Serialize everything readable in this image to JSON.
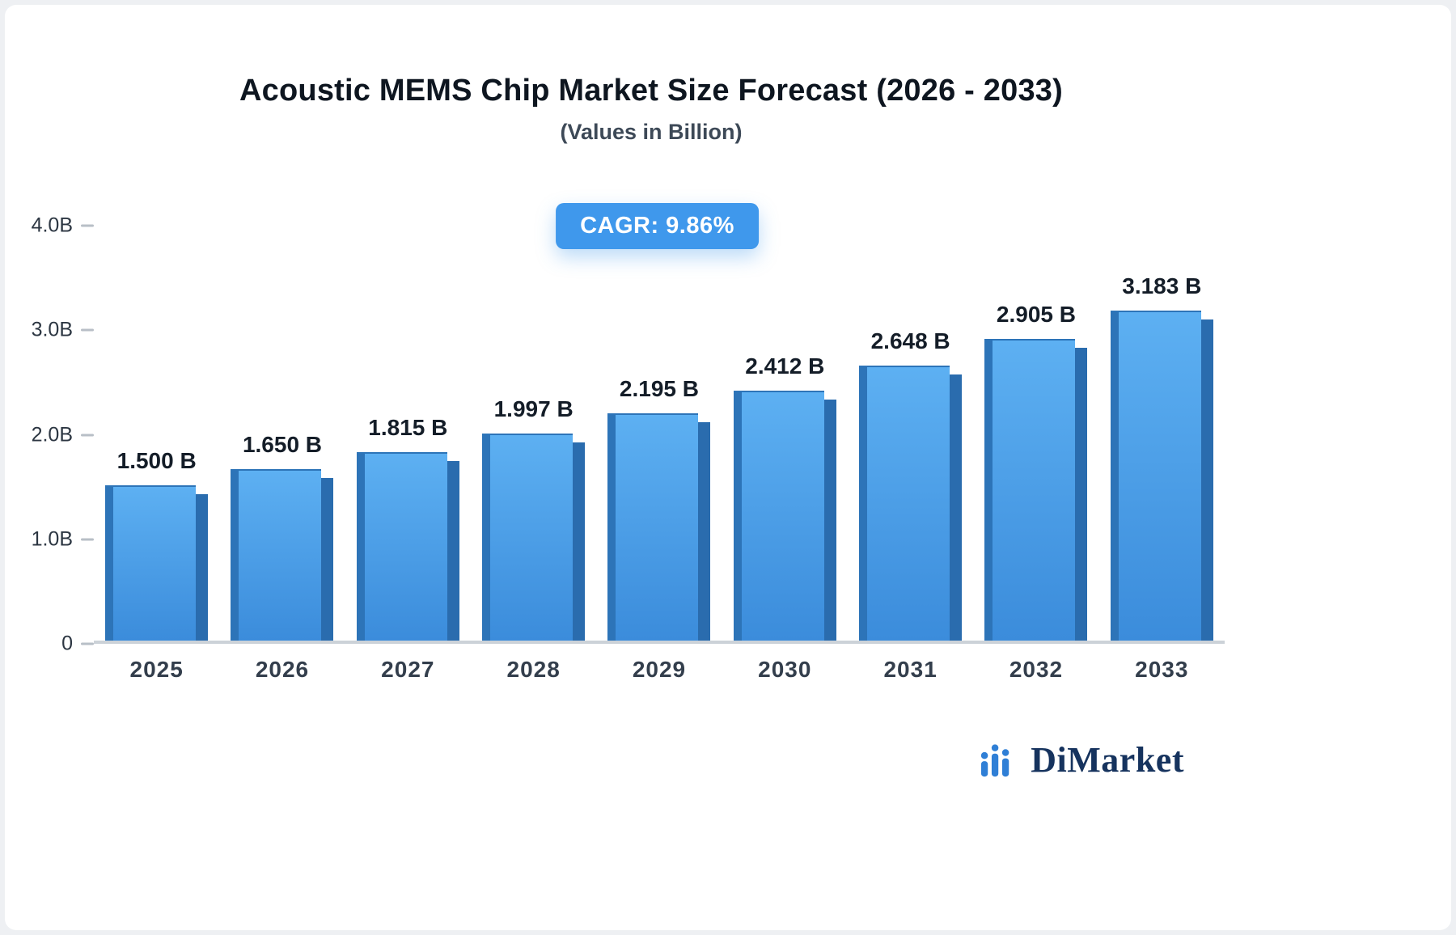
{
  "header": {
    "title": "Acoustic MEMS Chip Market Size Forecast (2026 - 2033)",
    "subtitle": "(Values in Billion)"
  },
  "badge": {
    "label": "CAGR: 9.86%"
  },
  "chart_data": {
    "type": "bar",
    "title": "Acoustic MEMS Chip Market Size Forecast (2026 - 2033)",
    "subtitle": "(Values in Billion)",
    "categories": [
      "2025",
      "2026",
      "2027",
      "2028",
      "2029",
      "2030",
      "2031",
      "2032",
      "2033"
    ],
    "values": [
      1.5,
      1.65,
      1.815,
      1.997,
      2.195,
      2.412,
      2.648,
      2.905,
      3.183
    ],
    "value_labels": [
      "1.500 B",
      "1.650 B",
      "1.815 B",
      "1.997 B",
      "2.195 B",
      "2.412 B",
      "2.648 B",
      "2.905 B",
      "3.183 B"
    ],
    "xlabel": "",
    "ylabel": "",
    "ylim": [
      0,
      4.0
    ],
    "yticks": [
      {
        "value": 0.0,
        "label": "0"
      },
      {
        "value": 1.0,
        "label": "1.0B"
      },
      {
        "value": 2.0,
        "label": "2.0B"
      },
      {
        "value": 3.0,
        "label": "3.0B"
      },
      {
        "value": 4.0,
        "label": "4.0B"
      }
    ],
    "grid": false,
    "legend": false,
    "annotation": "CAGR: 9.86%",
    "colors": {
      "bar_top": "#5db0f2",
      "bar_bottom": "#3b8cdb",
      "bar_edge": "#2d74b8",
      "bar_side": "#2a6cae",
      "axis": "#ccd2d8",
      "badge_bg": "#3f98ec",
      "badge_text": "#ffffff",
      "logo": "#16335e",
      "logo_icon": "#2f7fd6"
    }
  },
  "footer": {
    "logo_text": "DiMarket",
    "logo_icon": "bar-chart-icon"
  }
}
